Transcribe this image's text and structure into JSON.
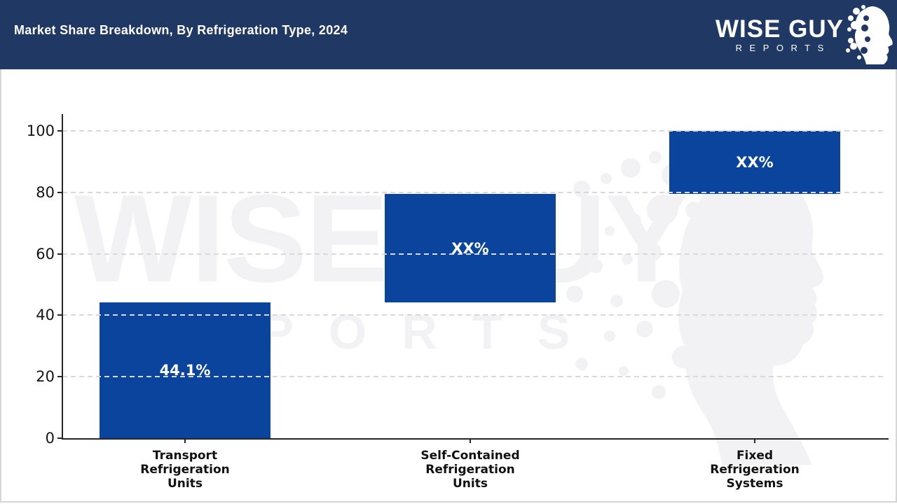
{
  "header": {
    "title": "Market Share Breakdown, By Refrigeration Type, 2024",
    "logo_line1": "WISE GUY",
    "logo_line2": "REPORTS"
  },
  "watermark": {
    "line1": "WISE GUY",
    "line2": "REPORTS"
  },
  "chart_data": {
    "type": "bar",
    "subtype": "stacked-waterfall",
    "title": "Market Share Breakdown, By Refrigeration Type, 2024",
    "categories": [
      {
        "lines": [
          "Transport",
          "Refrigeration",
          "Units"
        ]
      },
      {
        "lines": [
          "Self-Contained",
          "Refrigeration",
          "Units"
        ]
      },
      {
        "lines": [
          "Fixed",
          "Refrigeration",
          "Systems"
        ]
      }
    ],
    "segments": [
      {
        "category": "Transport Refrigeration Units",
        "start": 0,
        "end": 44.1,
        "label": "44.1%"
      },
      {
        "category": "Self-Contained Refrigeration Units",
        "start": 44.1,
        "end": 79.5,
        "label": "XX%"
      },
      {
        "category": "Fixed Refrigeration Systems",
        "start": 79.5,
        "end": 100,
        "label": "XX%"
      }
    ],
    "xlabel": "",
    "ylabel": "",
    "ylim": [
      0,
      105
    ],
    "yticks": [
      0,
      20,
      40,
      60,
      80,
      100
    ],
    "grid": "horizontal-dashed",
    "legend": "none",
    "colors": {
      "bar": "#0a449c",
      "bar_label": "#ffffff",
      "grid": "#d9d9d9",
      "axis": "#262626",
      "tick_label": "#151515",
      "header_bg": "#1f3864",
      "header_text": "#ffffff",
      "watermark": "#f2f2f4"
    }
  }
}
